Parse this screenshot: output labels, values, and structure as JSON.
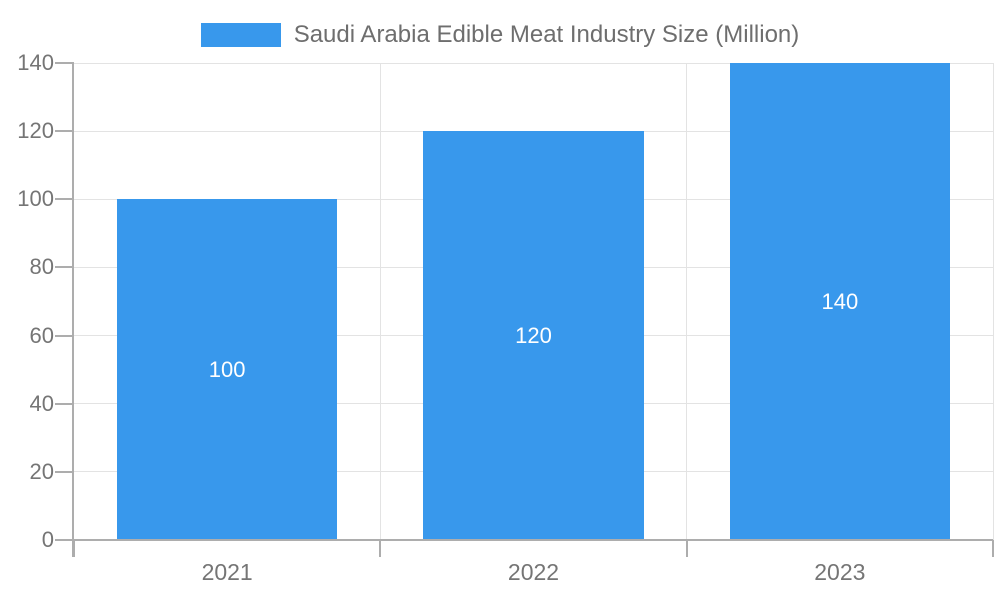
{
  "legend": {
    "label": "Saudi Arabia Edible Meat Industry Size (Million)"
  },
  "chart_data": {
    "type": "bar",
    "title": "",
    "series_name": "Saudi Arabia Edible Meat Industry Size (Million)",
    "categories": [
      "2021",
      "2022",
      "2023"
    ],
    "values": [
      100,
      120,
      140
    ],
    "data_labels": [
      "100",
      "120",
      "140"
    ],
    "xlabel": "",
    "ylabel": "",
    "ylim": [
      0,
      140
    ],
    "yticks": [
      0,
      20,
      40,
      60,
      80,
      100,
      120,
      140
    ],
    "grid": true,
    "legend_position": "top-center"
  },
  "colors": {
    "bar": "#3898EC",
    "grid": "#E3E3E3",
    "axis": "#ADADAD",
    "tick_label": "#757575",
    "legend_label": "#6E6E6E",
    "data_label": "#FFFFFF",
    "background": "#FFFFFF"
  }
}
